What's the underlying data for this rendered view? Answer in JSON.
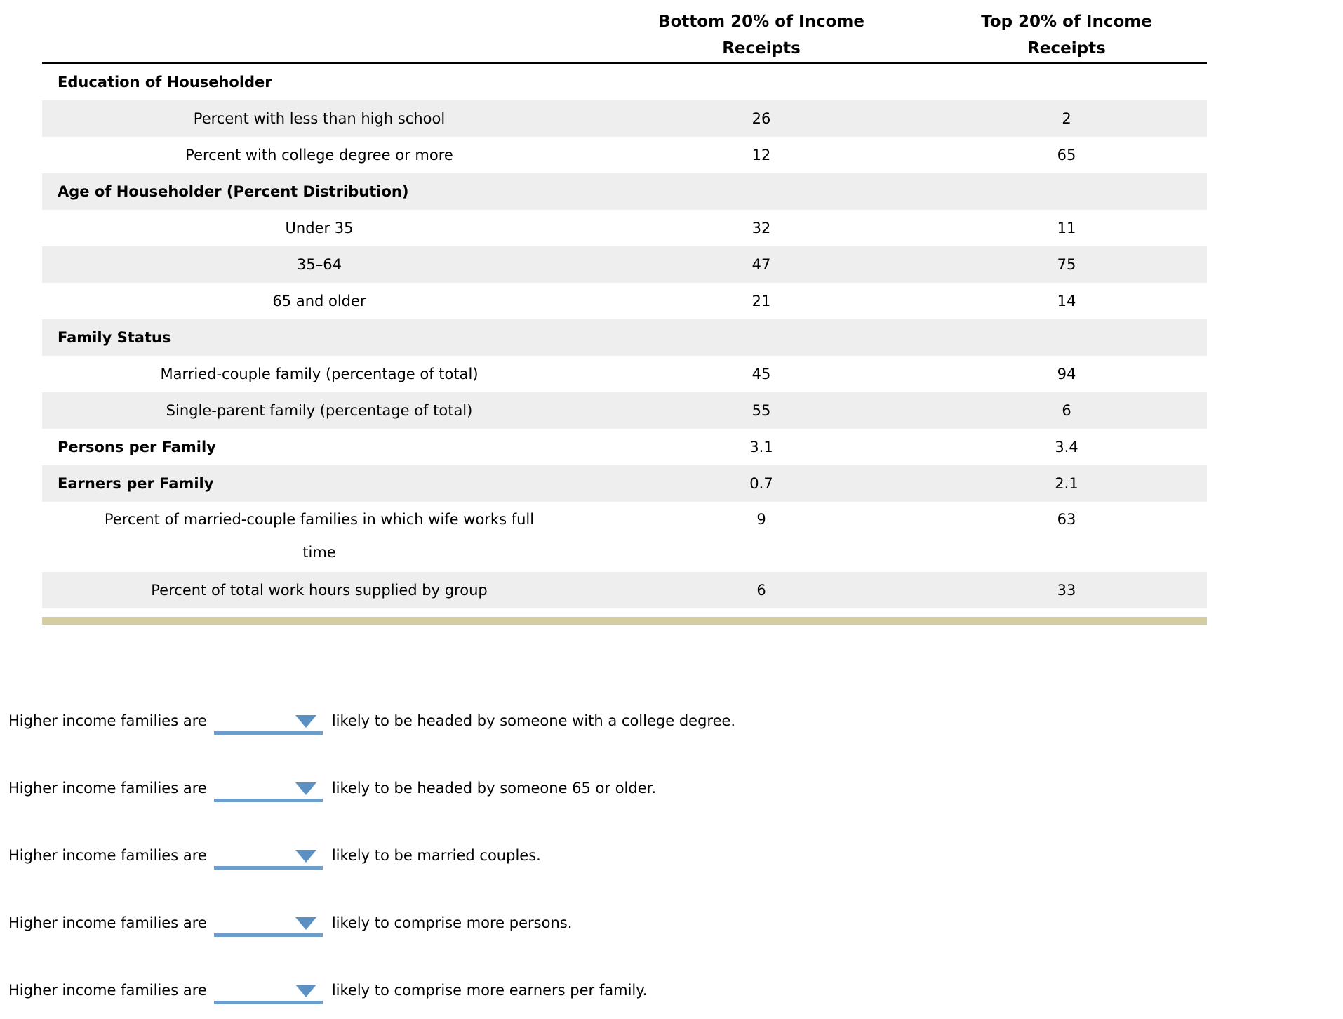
{
  "table": {
    "header": {
      "bottom_col_line1": "Bottom 20% of Income",
      "bottom_col_line2": "Receipts",
      "top_col_line1": "Top 20% of Income",
      "top_col_line2": "Receipts"
    },
    "rows": [
      {
        "type": "section",
        "shaded": false,
        "label": "Education of Householder",
        "label2": "",
        "bottom": "",
        "top": ""
      },
      {
        "type": "item",
        "shaded": true,
        "label": "Percent with less than high school",
        "label2": "",
        "bottom": "26",
        "top": "2"
      },
      {
        "type": "item",
        "shaded": false,
        "label": "Percent with college degree or more",
        "label2": "",
        "bottom": "12",
        "top": "65"
      },
      {
        "type": "section",
        "shaded": true,
        "label": "Age of Householder (Percent Distribution)",
        "label2": "",
        "bottom": "",
        "top": ""
      },
      {
        "type": "item",
        "shaded": false,
        "label": "Under 35",
        "label2": "",
        "bottom": "32",
        "top": "11"
      },
      {
        "type": "item",
        "shaded": true,
        "label": "35–64",
        "label2": "",
        "bottom": "47",
        "top": "75"
      },
      {
        "type": "item",
        "shaded": false,
        "label": "65 and older",
        "label2": "",
        "bottom": "21",
        "top": "14"
      },
      {
        "type": "section",
        "shaded": true,
        "label": "Family Status",
        "label2": "",
        "bottom": "",
        "top": ""
      },
      {
        "type": "item",
        "shaded": false,
        "label": "Married-couple family (percentage of total)",
        "label2": "",
        "bottom": "45",
        "top": "94"
      },
      {
        "type": "item",
        "shaded": true,
        "label": "Single-parent family (percentage of total)",
        "label2": "",
        "bottom": "55",
        "top": "6"
      },
      {
        "type": "section-value",
        "shaded": false,
        "label": "Persons per Family",
        "label2": "",
        "bottom": "3.1",
        "top": "3.4"
      },
      {
        "type": "section-value",
        "shaded": true,
        "label": "Earners per Family",
        "label2": "",
        "bottom": "0.7",
        "top": "2.1"
      },
      {
        "type": "item-twoline",
        "shaded": false,
        "label": "Percent of married-couple families in which wife works full",
        "label2": "time",
        "bottom": "9",
        "top": "63"
      },
      {
        "type": "item",
        "shaded": true,
        "label": "Percent of total work hours supplied by group",
        "label2": "",
        "bottom": "6",
        "top": "33"
      }
    ]
  },
  "questions": [
    {
      "pre": "Higher income families are",
      "selected": "",
      "post": "likely to be headed by someone with a college degree."
    },
    {
      "pre": "Higher income families are",
      "selected": "",
      "post": "likely to be headed by someone 65 or older."
    },
    {
      "pre": "Higher income families are",
      "selected": "",
      "post": "likely to be married couples."
    },
    {
      "pre": "Higher income families are",
      "selected": "",
      "post": "likely to comprise more persons."
    },
    {
      "pre": "Higher income families are",
      "selected": "",
      "post": "likely to comprise more earners per family."
    }
  ],
  "colors": {
    "shaded_row": "#eeeeee",
    "accent_bar": "#d5cda0",
    "dropdown_line": "#6d9dc9",
    "dropdown_arrow": "#5d90c2",
    "header_rule": "#000000",
    "text": "#000000"
  }
}
